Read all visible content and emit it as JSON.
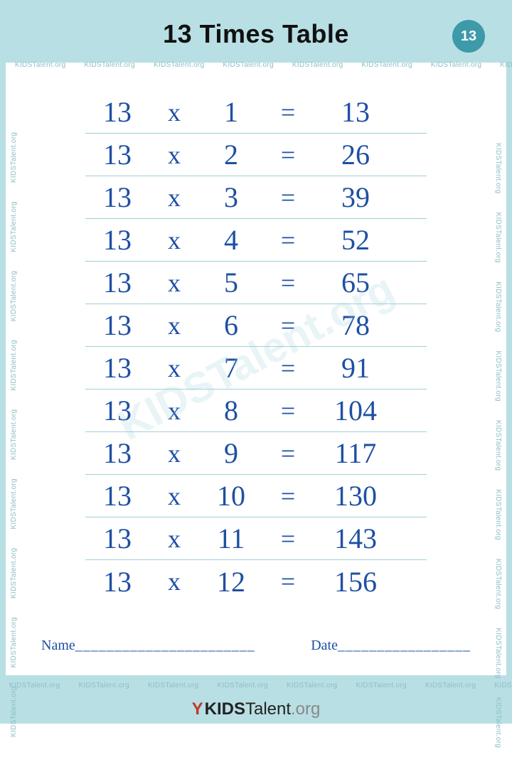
{
  "header": {
    "title": "13 Times Table",
    "badge": "13"
  },
  "watermark_text": "KIDSTalent.org",
  "watermark_repeat": 8,
  "table": {
    "type": "table",
    "multiplicand": 13,
    "multiply_symbol": "x",
    "equals_symbol": "=",
    "text_color": "#1e4fa3",
    "divider_color": "#9fd0d6",
    "font_size": 40,
    "rows": [
      {
        "a": 13,
        "b": 1,
        "r": 13
      },
      {
        "a": 13,
        "b": 2,
        "r": 26
      },
      {
        "a": 13,
        "b": 3,
        "r": 39
      },
      {
        "a": 13,
        "b": 4,
        "r": 52
      },
      {
        "a": 13,
        "b": 5,
        "r": 65
      },
      {
        "a": 13,
        "b": 6,
        "r": 78
      },
      {
        "a": 13,
        "b": 7,
        "r": 91
      },
      {
        "a": 13,
        "b": 8,
        "r": 104
      },
      {
        "a": 13,
        "b": 9,
        "r": 117
      },
      {
        "a": 13,
        "b": 10,
        "r": 130
      },
      {
        "a": 13,
        "b": 11,
        "r": 143
      },
      {
        "a": 13,
        "b": 12,
        "r": 156
      }
    ]
  },
  "form": {
    "name_label": "Name",
    "name_line": "_______________________",
    "date_label": "Date",
    "date_line": "_________________"
  },
  "footer": {
    "icon": "Y",
    "brand_bold": "KIDS",
    "brand_rest": "Talent",
    "domain": ".org"
  },
  "colors": {
    "page_bg": "#b8dfe4",
    "inner_bg": "#ffffff",
    "badge_bg": "#3d9aa8",
    "badge_text": "#ffffff",
    "title_text": "#111111",
    "watermark_text": "#8bbfc6"
  }
}
